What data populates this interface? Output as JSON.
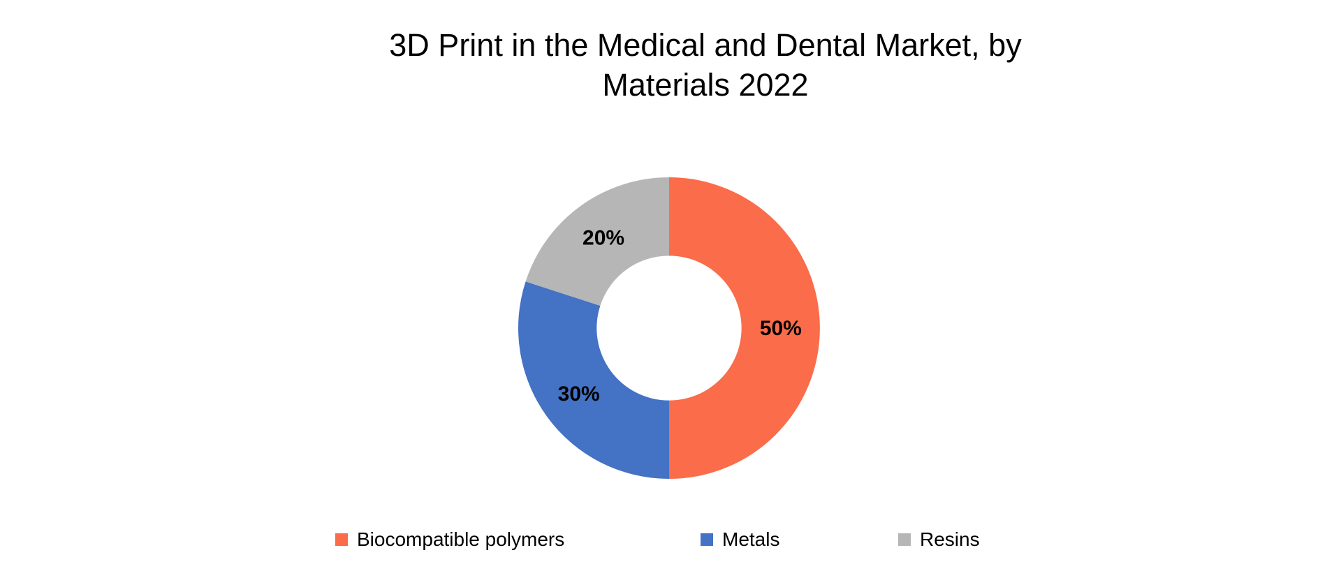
{
  "page": {
    "background": "#ffffff"
  },
  "title": {
    "full": "3D Print in the Medical and Dental Market, by Materials 2022",
    "line1": "3D Print in the Medical and Dental Market, by",
    "line2": "Materials 2022"
  },
  "chart_data": {
    "type": "pie",
    "subtype": "donut",
    "title": "3D Print in the Medical and Dental Market, by Materials 2022",
    "categories": [
      "Biocompatible polymers",
      "Metals",
      "Resins"
    ],
    "values": [
      50,
      30,
      20
    ],
    "unit": "%",
    "data_labels": [
      "50%",
      "30%",
      "20%"
    ],
    "colors": [
      "#FA6C4A",
      "#4472C4",
      "#B6B6B6"
    ],
    "start_angle_deg": 0,
    "direction": "clockwise",
    "hole_ratio": 0.48,
    "outer_radius_px": 216,
    "data_label_color": "#000000",
    "legend_position": "bottom"
  },
  "legend": {
    "items": [
      {
        "label": "Biocompatible polymers",
        "color": "#FA6C4A"
      },
      {
        "label": "Metals",
        "color": "#4472C4"
      },
      {
        "label": "Resins",
        "color": "#B6B6B6"
      }
    ]
  }
}
